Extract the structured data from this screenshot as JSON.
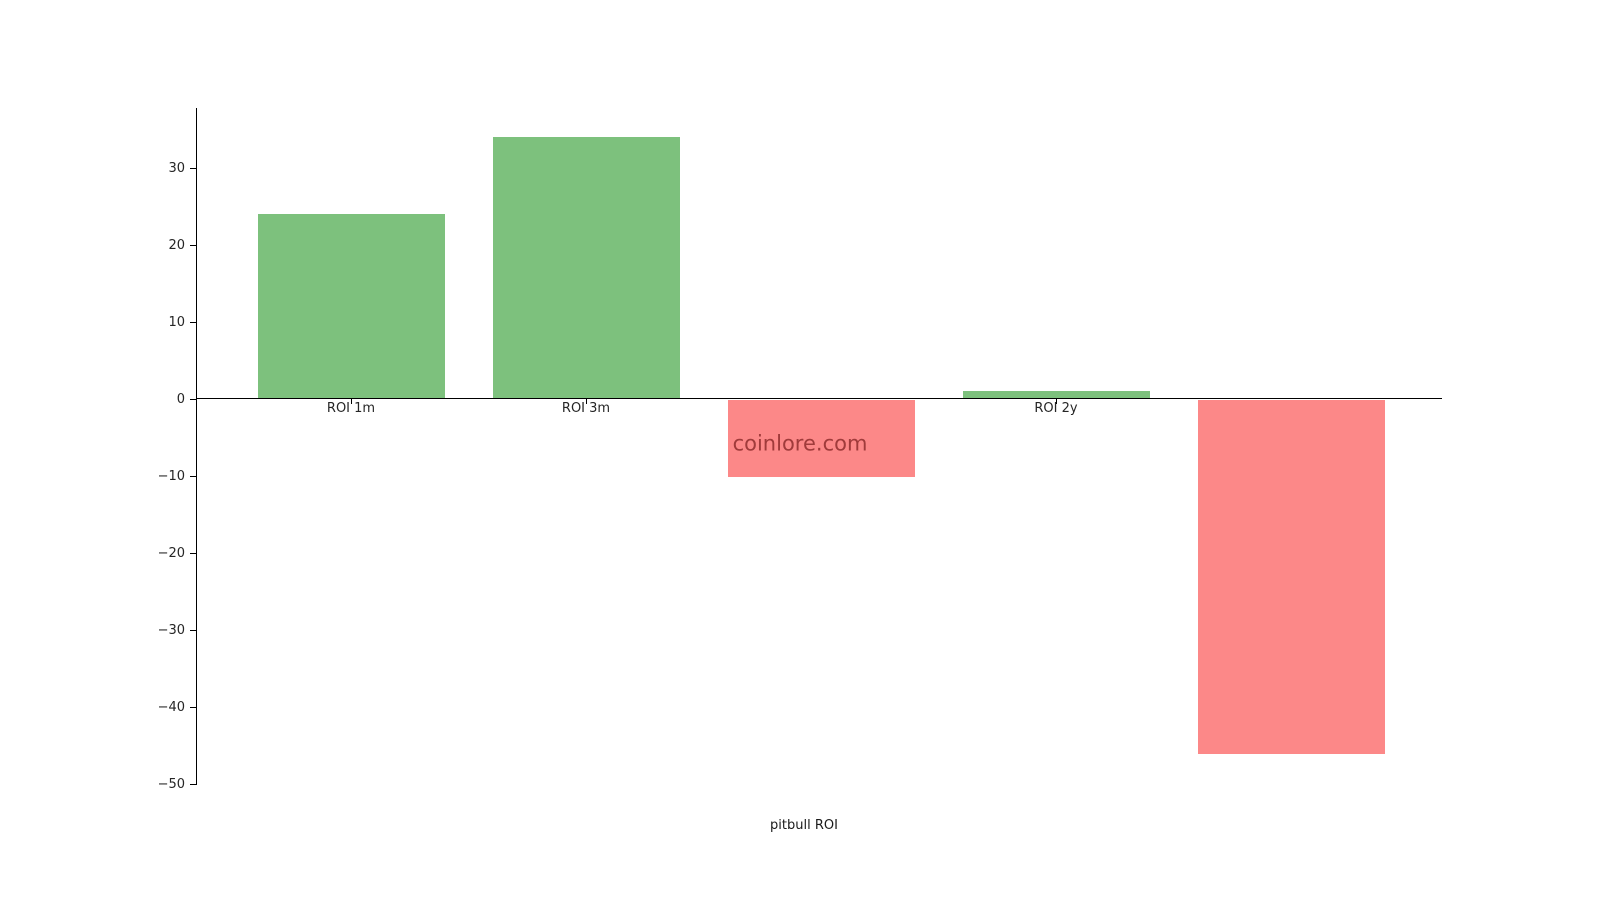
{
  "figure": {
    "background": "#ffffff"
  },
  "watermark": {
    "text": "coinlore.com",
    "color": "#a03b3b"
  },
  "chart_data": {
    "type": "bar",
    "title": "",
    "xlabel": "pitbull ROI",
    "ylabel": "",
    "categories": [
      "ROI 1m",
      "ROI 3m",
      "",
      "ROI 2y",
      ""
    ],
    "values": [
      24,
      34,
      -10,
      1,
      -46
    ],
    "series": [
      {
        "name": "pitbull ROI",
        "values": [
          24,
          34,
          -10,
          1,
          -46
        ]
      }
    ],
    "bar_colors": [
      "#7dc17d",
      "#7dc17d",
      "#fc8888",
      "#7dc17d",
      "#fc8888"
    ],
    "positive_color": "#7dc17d",
    "negative_color": "#fc8888",
    "ylim": [
      -50.2,
      37.9
    ],
    "yticks": [
      30,
      20,
      10,
      0,
      -10,
      -20,
      -30,
      -40,
      -50
    ],
    "ytick_labels": [
      "30",
      "20",
      "10",
      "0",
      "−10",
      "−20",
      "−30",
      "−40",
      "−50"
    ],
    "grid": false,
    "legend": false,
    "axis_color": "#000000",
    "tick_label_color": "#262626"
  }
}
